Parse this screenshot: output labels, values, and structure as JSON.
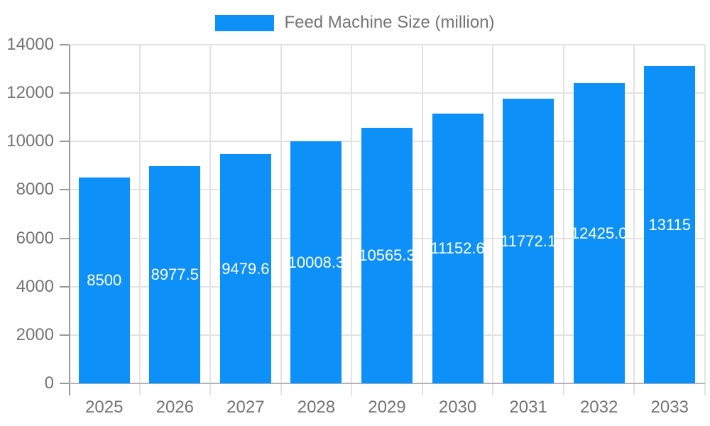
{
  "chart": {
    "legend": "Feed Machine Size (million)",
    "colors": {
      "bar": "#0e90f9",
      "grid": "#e3e3e3",
      "axis": "#999999",
      "baseline": "#b3b3b3",
      "tick_text": "#757575",
      "bar_label_text": "#ffffff"
    }
  },
  "chart_data": {
    "type": "bar",
    "title": "Feed Machine Size (million)",
    "legend_entries": [
      "Feed Machine Size (million)"
    ],
    "legend_position": "top",
    "categories": [
      "2025",
      "2026",
      "2027",
      "2028",
      "2029",
      "2030",
      "2031",
      "2032",
      "2033"
    ],
    "values": [
      8500,
      8977.5,
      9479.6,
      10008.3,
      10565.3,
      11152.6,
      11772.1,
      12425.0,
      13115
    ],
    "value_labels": [
      "8500",
      "8977.5",
      "9479.6",
      "10008.3",
      "10565.3",
      "11152.6",
      "11772.1",
      "12425.0",
      "13115"
    ],
    "xlabel": "",
    "ylabel": "",
    "ylim": [
      0,
      14000
    ],
    "ytick_step": 2000,
    "ytick_labels": [
      "0",
      "2000",
      "4000",
      "6000",
      "8000",
      "10000",
      "12000",
      "14000"
    ],
    "grid": true
  }
}
